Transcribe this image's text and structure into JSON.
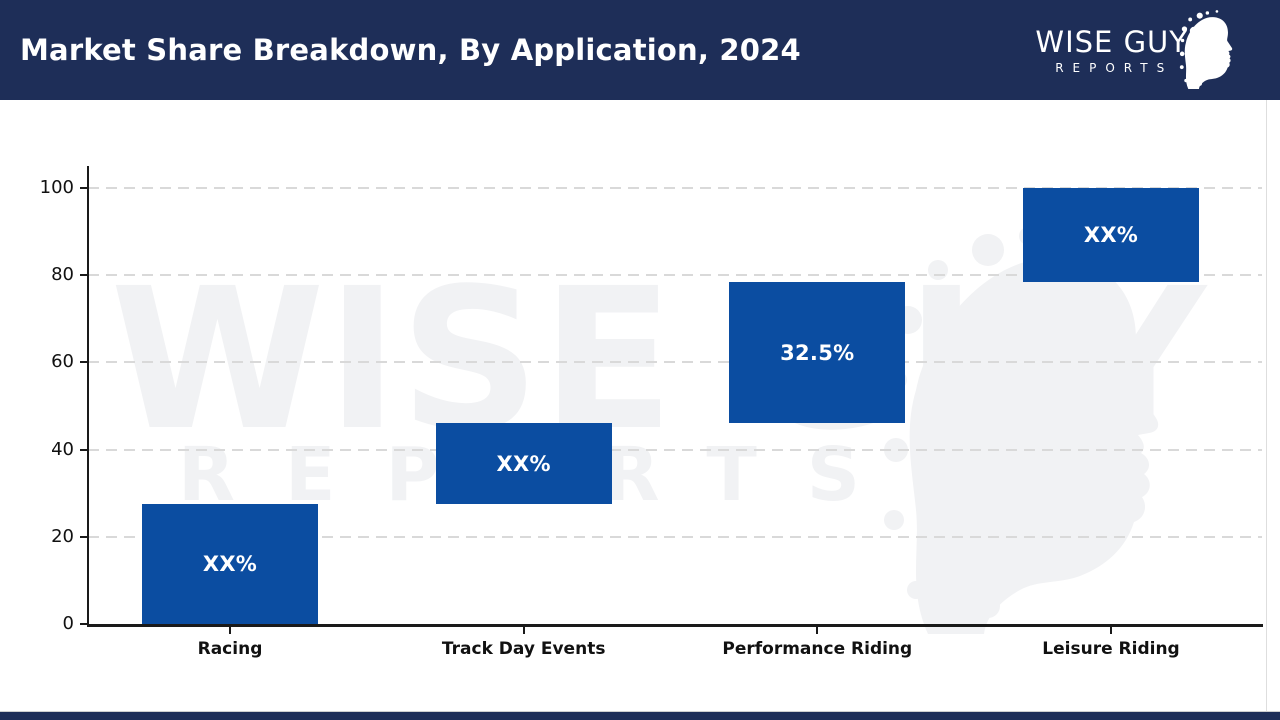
{
  "header": {
    "title": "Market Share Breakdown, By Application, 2024",
    "logo": {
      "line1": "WISE GUY",
      "line2": "REPORTS"
    }
  },
  "watermark": {
    "line1": "WISE GUY",
    "line2": "REPORTS"
  },
  "colors": {
    "header_bg": "#1e2e58",
    "bar": "#0b4da1",
    "grid": "#d9d9d9",
    "axis": "#1a1a1a",
    "watermark": "#f1f2f4",
    "text_on_dark": "#ffffff"
  },
  "chart_data": {
    "type": "bar",
    "subtype": "waterfall",
    "title": "Market Share Breakdown, By Application, 2024",
    "categories": [
      "Racing",
      "Track Day Events",
      "Performance Riding",
      "Leisure Riding"
    ],
    "bar_labels": [
      "XX%",
      "XX%",
      "32.5%",
      "XX%"
    ],
    "segments": [
      {
        "start": 0,
        "end": 27.5
      },
      {
        "start": 27.5,
        "end": 46
      },
      {
        "start": 46,
        "end": 78.5
      },
      {
        "start": 78.5,
        "end": 100
      }
    ],
    "values_pct": [
      27.5,
      18.5,
      32.5,
      21.5
    ],
    "xlabel": "",
    "ylabel": "",
    "ylim": [
      0,
      100
    ],
    "yticks": [
      0,
      20,
      40,
      60,
      80,
      100
    ],
    "grid": "horizontal-dashed",
    "legend": "none"
  }
}
